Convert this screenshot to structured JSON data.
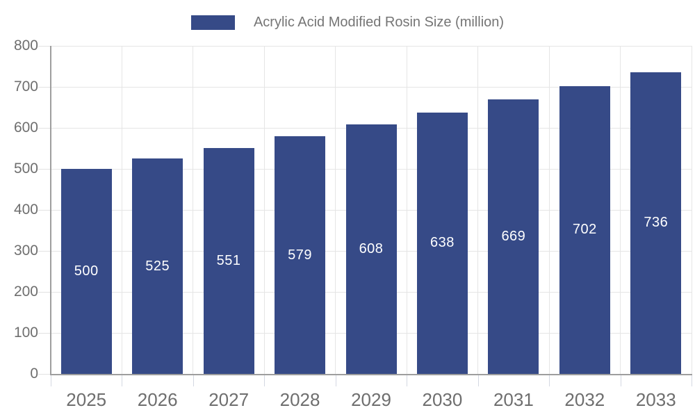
{
  "legend": {
    "label": "Acrylic Acid Modified Rosin Size (million)"
  },
  "chart_data": {
    "type": "bar",
    "title": "",
    "categories": [
      "2025",
      "2026",
      "2027",
      "2028",
      "2029",
      "2030",
      "2031",
      "2032",
      "2033"
    ],
    "values": [
      500,
      525,
      551,
      579,
      608,
      638,
      669,
      702,
      736
    ],
    "series_name": "Acrylic Acid Modified Rosin Size (million)",
    "xlabel": "",
    "ylabel": "",
    "ylim": [
      0,
      800
    ],
    "ytick_interval": 100,
    "grid": true,
    "legend_position": "top-center",
    "value_label_position": "inside-center",
    "colors": {
      "bar": "#364a87",
      "grid_line": "#e5e5e5",
      "axis_line": "#9e9e9e",
      "y_tick_line": "#e2e2e2",
      "x_tick_line": "#d4d8e2",
      "axis_text": "#6e6e6e",
      "legend_text": "#757575",
      "value_label_text": "#ffffff",
      "background": "#ffffff"
    }
  }
}
